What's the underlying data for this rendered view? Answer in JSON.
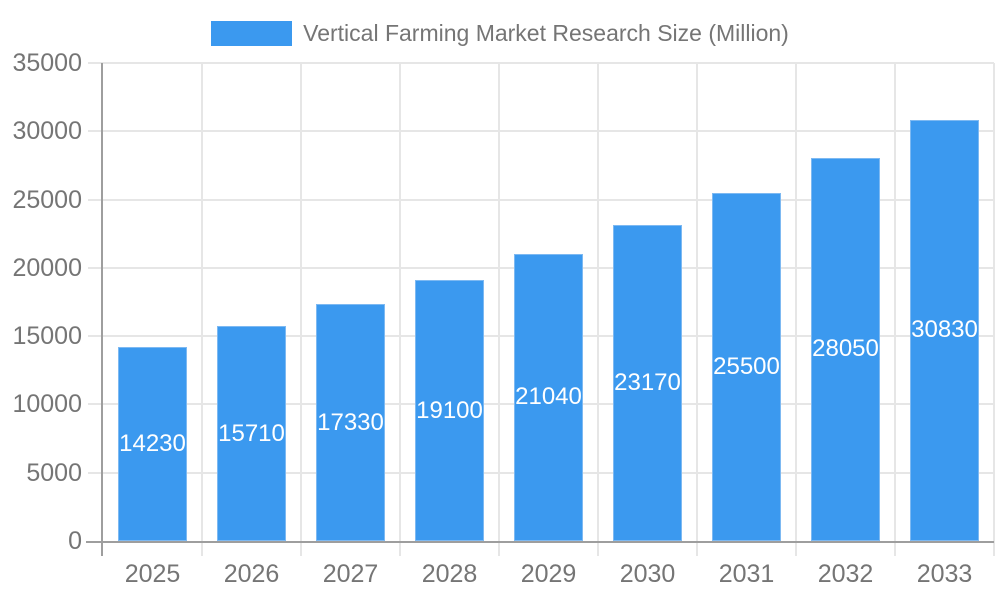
{
  "legend": {
    "label": "Vertical Farming Market Research Size (Million)"
  },
  "chart_data": {
    "type": "bar",
    "title": "Vertical Farming Market Research Size (Million)",
    "categories": [
      "2025",
      "2026",
      "2027",
      "2028",
      "2029",
      "2030",
      "2031",
      "2032",
      "2033"
    ],
    "values": [
      14230,
      15710,
      17330,
      19100,
      21040,
      23170,
      25500,
      28050,
      30830
    ],
    "bar_value_labels": [
      "14230",
      "15710",
      "17330",
      "19100",
      "21040",
      "23170",
      "25500",
      "28050",
      "30830"
    ],
    "xlabel": "",
    "ylabel": "",
    "ylim": [
      0,
      35000
    ],
    "ytick_step": 5000,
    "yticks": [
      "0",
      "5000",
      "10000",
      "15000",
      "20000",
      "25000",
      "30000",
      "35000"
    ],
    "grid": true,
    "legend_position": "top",
    "colors": {
      "bar": "#3B99EF",
      "bar_border": "#7DB9F2",
      "bar_label_text": "#FFFFFF",
      "gridline": "#E6E6E6",
      "axis_line": "#9E9E9E",
      "axis_text": "#757575",
      "background": "#FFFFFF"
    }
  }
}
